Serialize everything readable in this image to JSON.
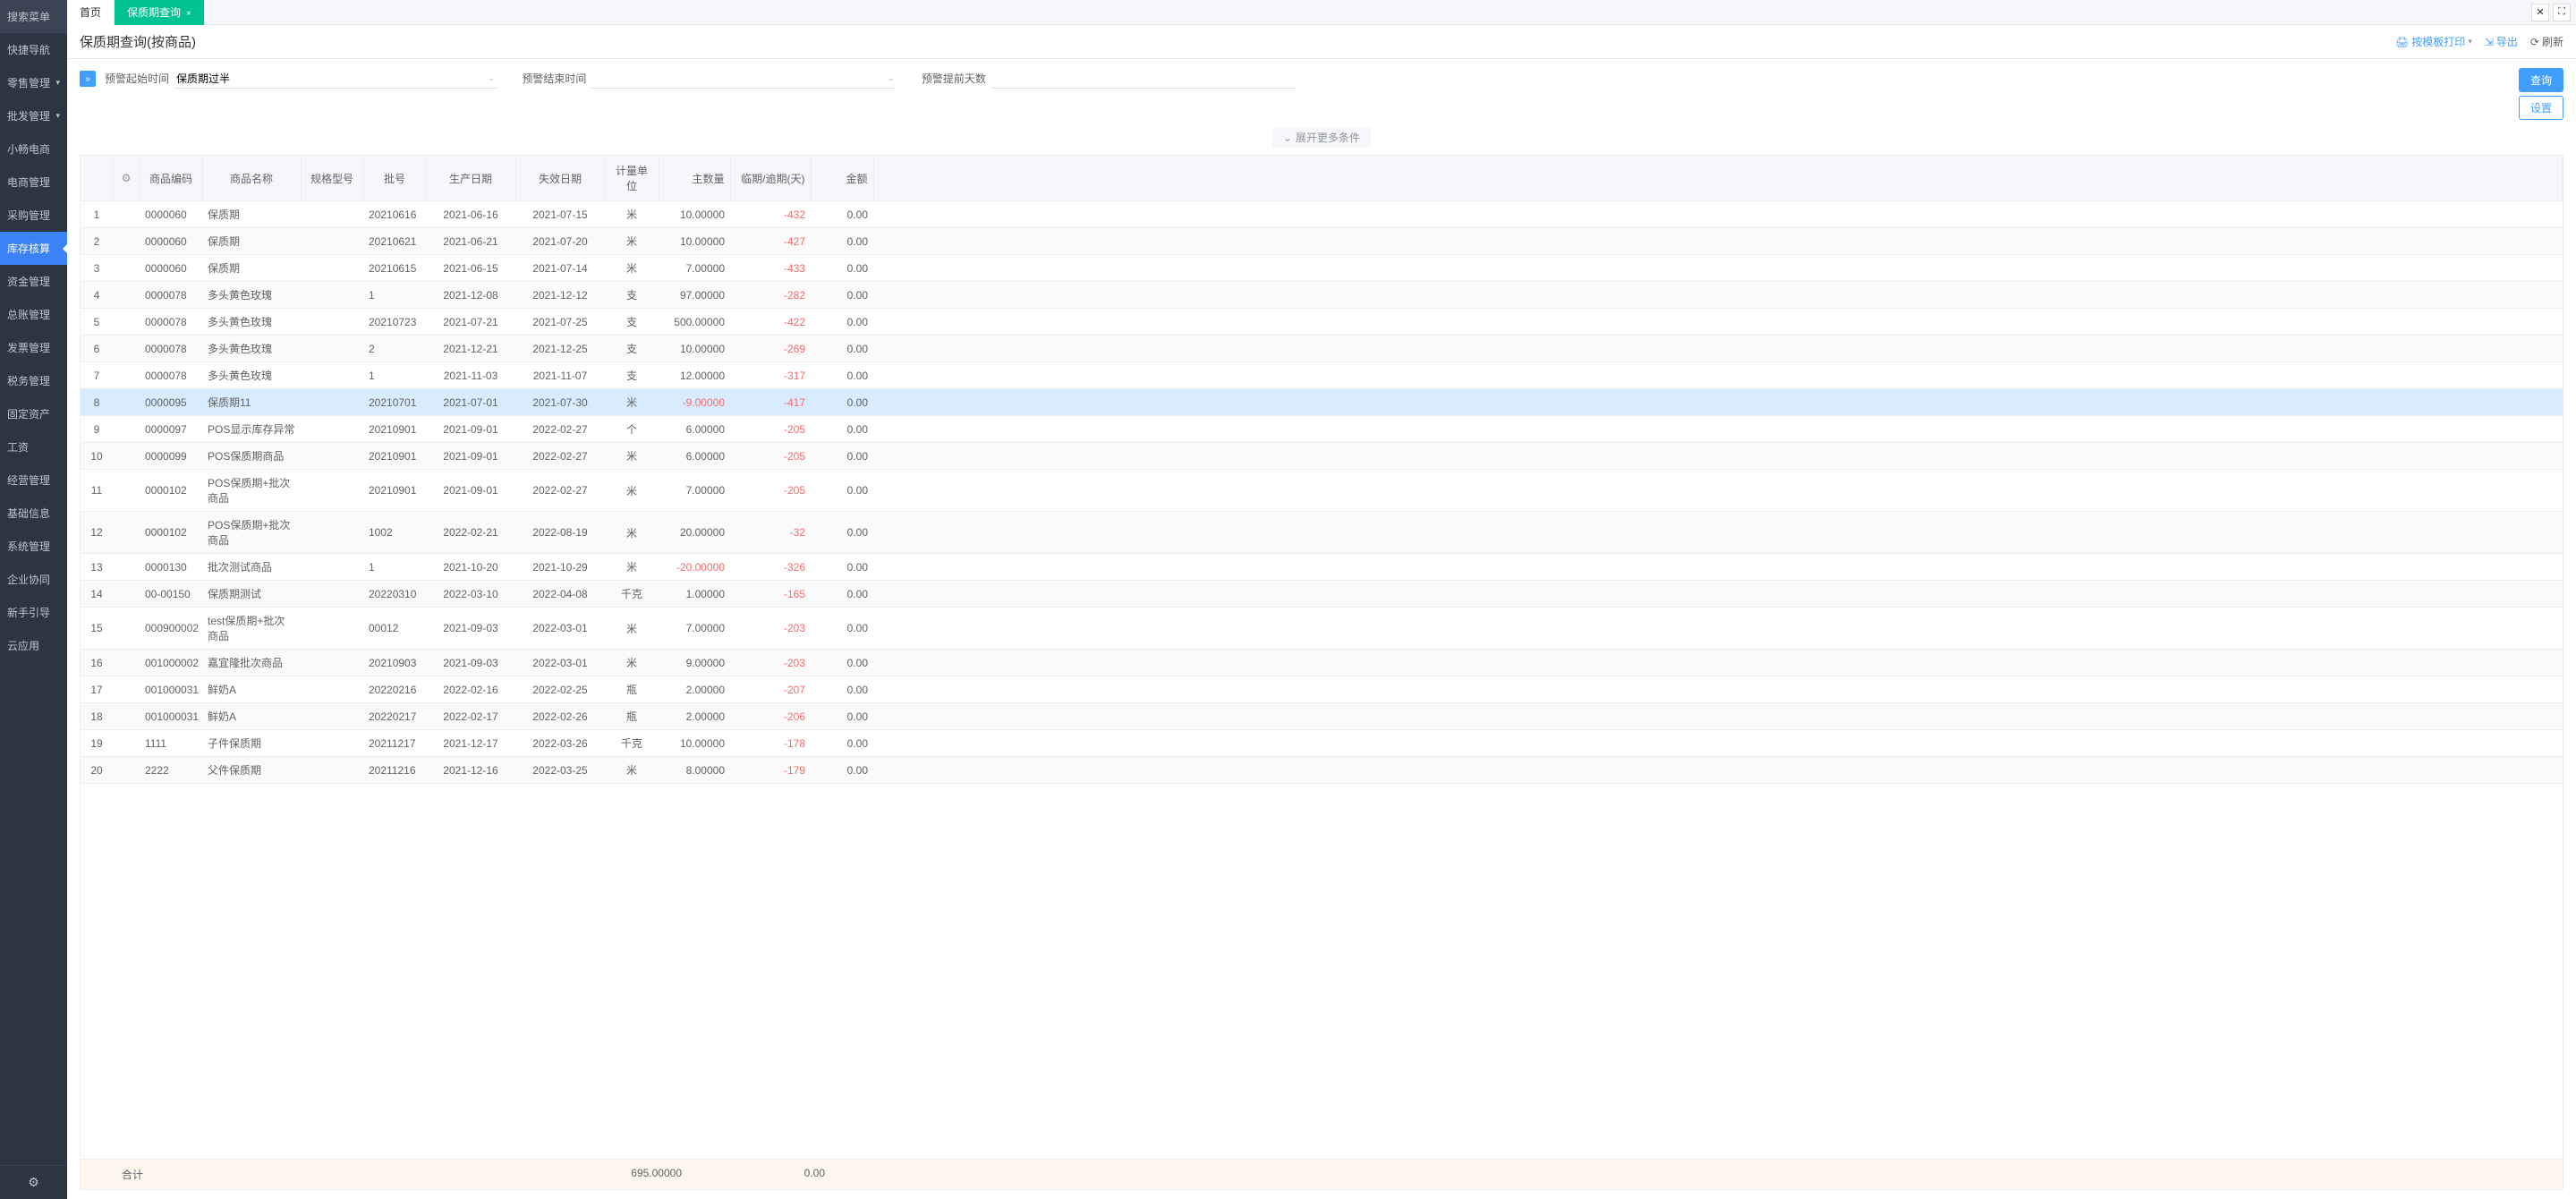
{
  "sidebar": {
    "items": [
      {
        "label": "搜索菜单",
        "caret": false
      },
      {
        "label": "快捷导航",
        "caret": false
      },
      {
        "label": "零售管理",
        "caret": true
      },
      {
        "label": "批发管理",
        "caret": true
      },
      {
        "label": "小畅电商",
        "caret": false
      },
      {
        "label": "电商管理",
        "caret": false
      },
      {
        "label": "采购管理",
        "caret": false
      },
      {
        "label": "库存核算",
        "caret": false,
        "active": true
      },
      {
        "label": "资金管理",
        "caret": false
      },
      {
        "label": "总账管理",
        "caret": false
      },
      {
        "label": "发票管理",
        "caret": false
      },
      {
        "label": "税务管理",
        "caret": false
      },
      {
        "label": "固定资产",
        "caret": false
      },
      {
        "label": "工资",
        "caret": false
      },
      {
        "label": "经营管理",
        "caret": false
      },
      {
        "label": "基础信息",
        "caret": false
      },
      {
        "label": "系统管理",
        "caret": false
      },
      {
        "label": "企业协同",
        "caret": false
      },
      {
        "label": "新手引导",
        "caret": false
      },
      {
        "label": "云应用",
        "caret": false
      }
    ]
  },
  "tabs": [
    {
      "label": "首页",
      "closable": false,
      "active": false
    },
    {
      "label": "保质期查询",
      "closable": true,
      "active": true
    }
  ],
  "page": {
    "title": "保质期查询(按商品)",
    "actions": {
      "print": "按模板打印",
      "export": "导出",
      "refresh": "刷新"
    }
  },
  "filters": {
    "start_label": "预警起始时间",
    "start_value": "保质期过半",
    "end_label": "预警结束时间",
    "days_label": "预警提前天数",
    "query_btn": "查询",
    "reset_btn": "设置",
    "expand": "展开更多条件"
  },
  "table": {
    "columns": [
      "",
      "商品编码",
      "商品名称",
      "规格型号",
      "批号",
      "生产日期",
      "失效日期",
      "计量单位",
      "主数量",
      "临期/逾期(天)",
      "金额"
    ],
    "rows": [
      {
        "i": 1,
        "code": "0000060",
        "name": "保质期",
        "spec": "",
        "batch": "20210616",
        "prod": "2021-06-16",
        "exp": "2021-07-15",
        "unit": "米",
        "qty": "10.00000",
        "days": "-432",
        "amt": "0.00"
      },
      {
        "i": 2,
        "code": "0000060",
        "name": "保质期",
        "spec": "",
        "batch": "20210621",
        "prod": "2021-06-21",
        "exp": "2021-07-20",
        "unit": "米",
        "qty": "10.00000",
        "days": "-427",
        "amt": "0.00"
      },
      {
        "i": 3,
        "code": "0000060",
        "name": "保质期",
        "spec": "",
        "batch": "20210615",
        "prod": "2021-06-15",
        "exp": "2021-07-14",
        "unit": "米",
        "qty": "7.00000",
        "days": "-433",
        "amt": "0.00"
      },
      {
        "i": 4,
        "code": "0000078",
        "name": "多头黄色玫瑰",
        "spec": "",
        "batch": "1",
        "prod": "2021-12-08",
        "exp": "2021-12-12",
        "unit": "支",
        "qty": "97.00000",
        "days": "-282",
        "amt": "0.00"
      },
      {
        "i": 5,
        "code": "0000078",
        "name": "多头黄色玫瑰",
        "spec": "",
        "batch": "20210723",
        "prod": "2021-07-21",
        "exp": "2021-07-25",
        "unit": "支",
        "qty": "500.00000",
        "days": "-422",
        "amt": "0.00"
      },
      {
        "i": 6,
        "code": "0000078",
        "name": "多头黄色玫瑰",
        "spec": "",
        "batch": "2",
        "prod": "2021-12-21",
        "exp": "2021-12-25",
        "unit": "支",
        "qty": "10.00000",
        "days": "-269",
        "amt": "0.00"
      },
      {
        "i": 7,
        "code": "0000078",
        "name": "多头黄色玫瑰",
        "spec": "",
        "batch": "1",
        "prod": "2021-11-03",
        "exp": "2021-11-07",
        "unit": "支",
        "qty": "12.00000",
        "days": "-317",
        "amt": "0.00"
      },
      {
        "i": 8,
        "code": "0000095",
        "name": "保质期11",
        "spec": "",
        "batch": "20210701",
        "prod": "2021-07-01",
        "exp": "2021-07-30",
        "unit": "米",
        "qty": "-9.00000",
        "qtyneg": true,
        "days": "-417",
        "amt": "0.00",
        "hl": true
      },
      {
        "i": 9,
        "code": "0000097",
        "name": "POS显示库存异常",
        "spec": "",
        "batch": "20210901",
        "prod": "2021-09-01",
        "exp": "2022-02-27",
        "unit": "个",
        "qty": "6.00000",
        "days": "-205",
        "amt": "0.00"
      },
      {
        "i": 10,
        "code": "0000099",
        "name": "POS保质期商品",
        "spec": "",
        "batch": "20210901",
        "prod": "2021-09-01",
        "exp": "2022-02-27",
        "unit": "米",
        "qty": "6.00000",
        "days": "-205",
        "amt": "0.00"
      },
      {
        "i": 11,
        "code": "0000102",
        "name": "POS保质期+批次商品",
        "spec": "",
        "batch": "20210901",
        "prod": "2021-09-01",
        "exp": "2022-02-27",
        "unit": "米",
        "qty": "7.00000",
        "days": "-205",
        "amt": "0.00"
      },
      {
        "i": 12,
        "code": "0000102",
        "name": "POS保质期+批次商品",
        "spec": "",
        "batch": "1002",
        "prod": "2022-02-21",
        "exp": "2022-08-19",
        "unit": "米",
        "qty": "20.00000",
        "days": "-32",
        "amt": "0.00"
      },
      {
        "i": 13,
        "code": "0000130",
        "name": "批次测试商品",
        "spec": "",
        "batch": "1",
        "prod": "2021-10-20",
        "exp": "2021-10-29",
        "unit": "米",
        "qty": "-20.00000",
        "qtyneg": true,
        "days": "-326",
        "amt": "0.00"
      },
      {
        "i": 14,
        "code": "00-00150",
        "name": "保质期测试",
        "spec": "",
        "batch": "20220310",
        "prod": "2022-03-10",
        "exp": "2022-04-08",
        "unit": "千克",
        "qty": "1.00000",
        "days": "-165",
        "amt": "0.00"
      },
      {
        "i": 15,
        "code": "000900002",
        "name": "test保质期+批次商品",
        "spec": "",
        "batch": "00012",
        "prod": "2021-09-03",
        "exp": "2022-03-01",
        "unit": "米",
        "qty": "7.00000",
        "days": "-203",
        "amt": "0.00"
      },
      {
        "i": 16,
        "code": "001000002",
        "name": "嘉宜隆批次商品",
        "spec": "",
        "batch": "20210903",
        "prod": "2021-09-03",
        "exp": "2022-03-01",
        "unit": "米",
        "qty": "9.00000",
        "days": "-203",
        "amt": "0.00"
      },
      {
        "i": 17,
        "code": "001000031",
        "name": "鲜奶A",
        "spec": "",
        "batch": "20220216",
        "prod": "2022-02-16",
        "exp": "2022-02-25",
        "unit": "瓶",
        "qty": "2.00000",
        "days": "-207",
        "amt": "0.00"
      },
      {
        "i": 18,
        "code": "001000031",
        "name": "鲜奶A",
        "spec": "",
        "batch": "20220217",
        "prod": "2022-02-17",
        "exp": "2022-02-26",
        "unit": "瓶",
        "qty": "2.00000",
        "days": "-206",
        "amt": "0.00"
      },
      {
        "i": 19,
        "code": "1111",
        "name": "子件保质期",
        "spec": "",
        "batch": "20211217",
        "prod": "2021-12-17",
        "exp": "2022-03-26",
        "unit": "千克",
        "qty": "10.00000",
        "days": "-178",
        "amt": "0.00"
      },
      {
        "i": 20,
        "code": "2222",
        "name": "父件保质期",
        "spec": "",
        "batch": "20211216",
        "prod": "2021-12-16",
        "exp": "2022-03-25",
        "unit": "米",
        "qty": "8.00000",
        "days": "-179",
        "amt": "0.00"
      }
    ],
    "footer": {
      "label": "合计",
      "qty": "695.00000",
      "amt": "0.00"
    }
  }
}
